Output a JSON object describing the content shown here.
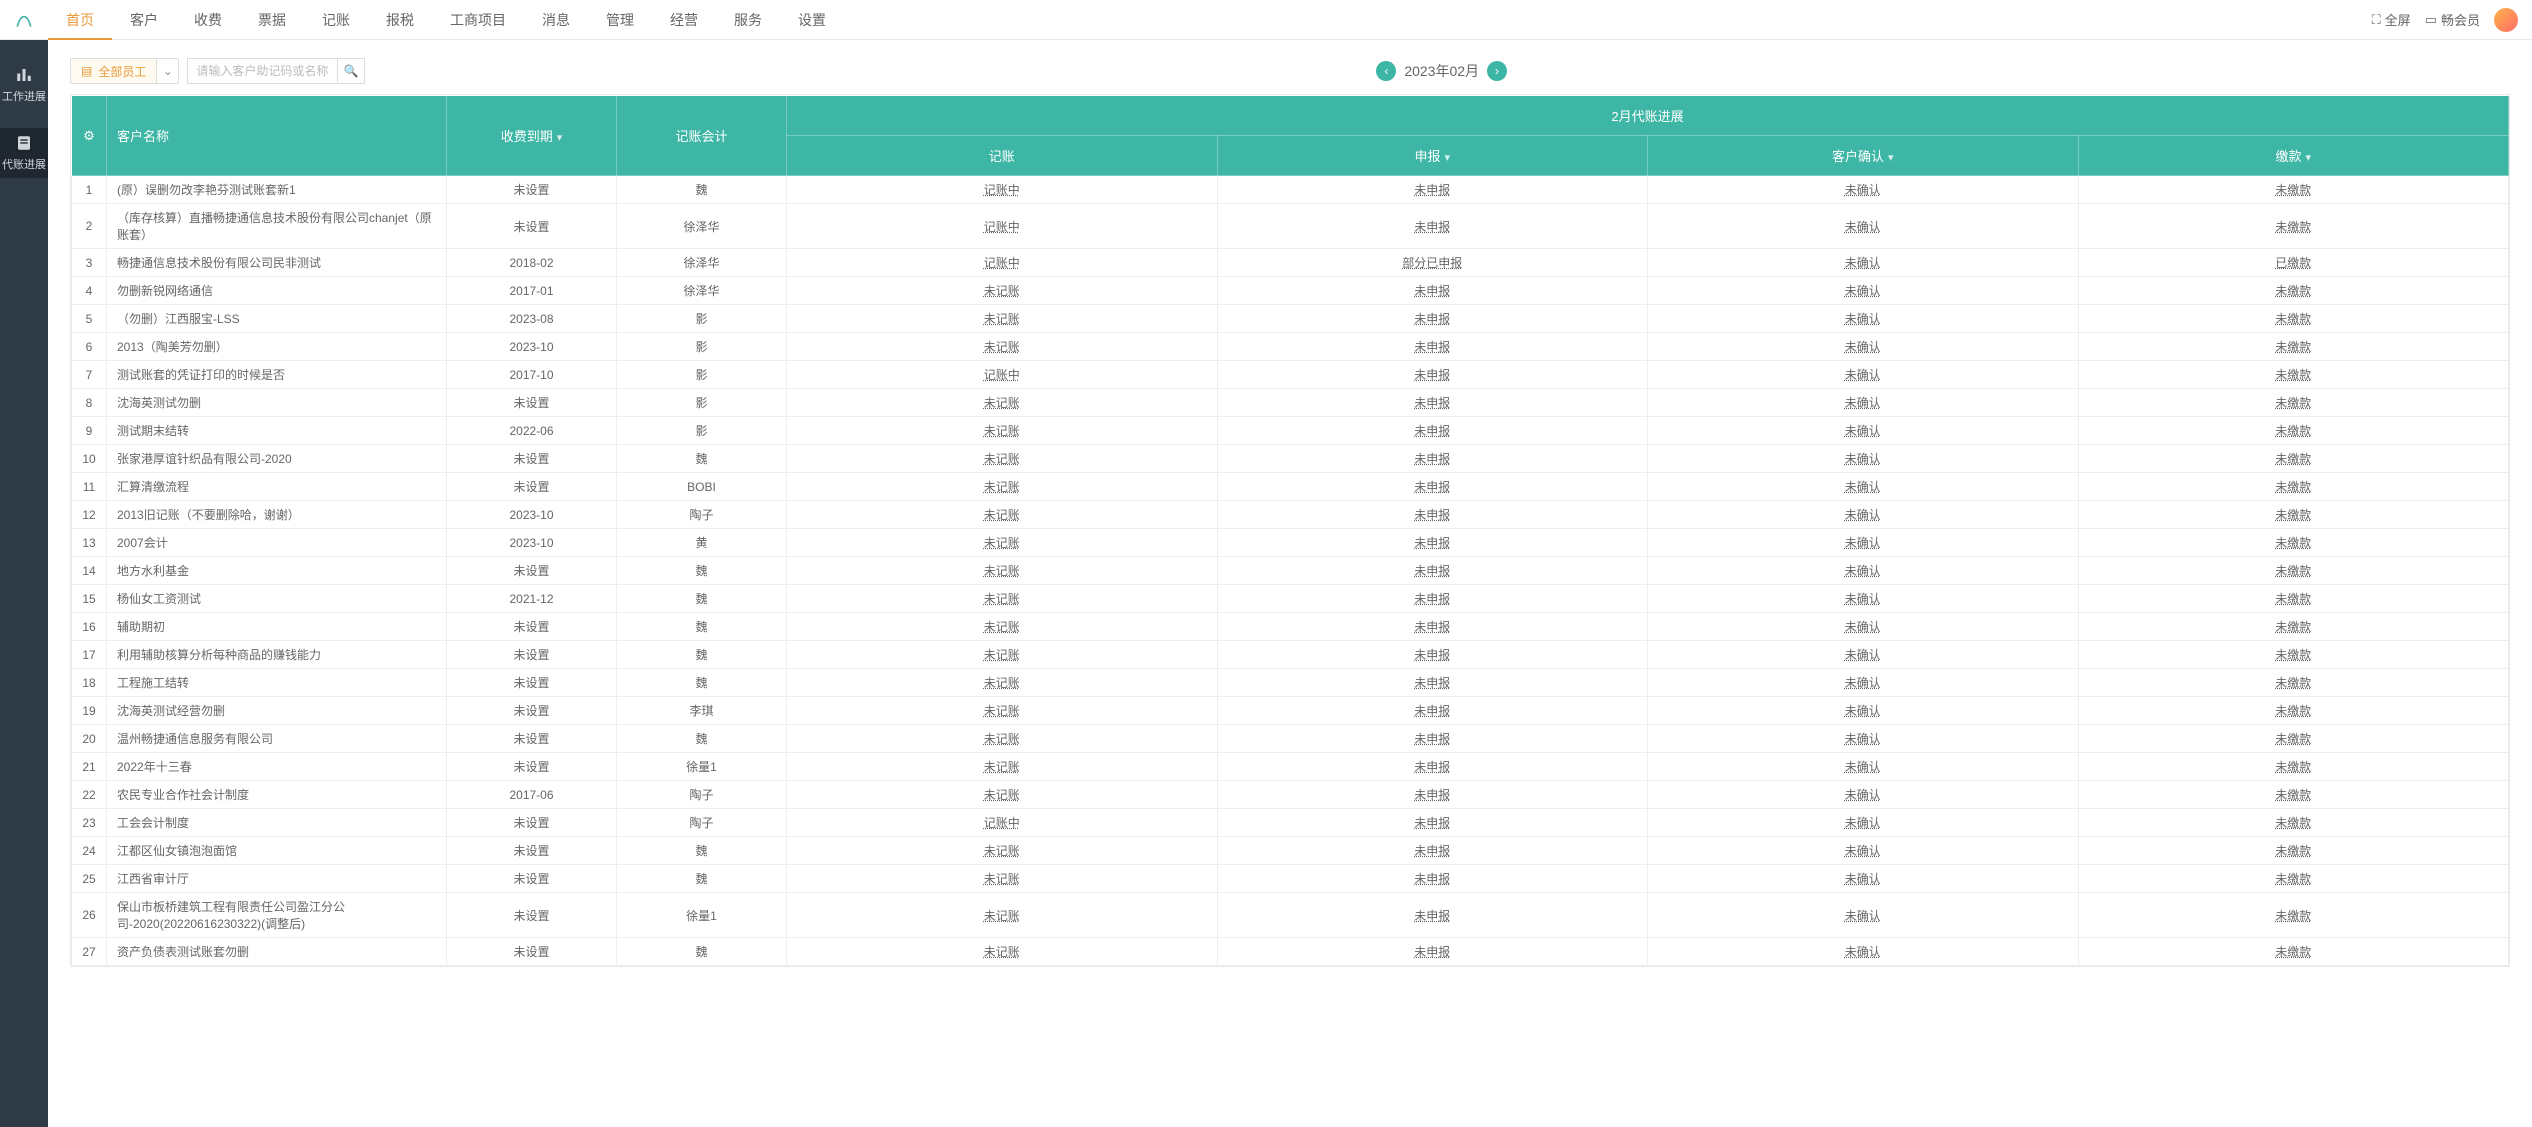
{
  "topnav": [
    "首页",
    "客户",
    "收费",
    "票据",
    "记账",
    "报税",
    "工商项目",
    "消息",
    "管理",
    "经营",
    "服务",
    "设置"
  ],
  "topnav_active_index": 0,
  "topright": {
    "fullscreen": "全屏",
    "member": "畅会员"
  },
  "sidebar": [
    {
      "label": "工作进展",
      "icon": "bar"
    },
    {
      "label": "代账进展",
      "icon": "doc"
    }
  ],
  "sidebar_active_index": 1,
  "filters": {
    "staff_label": "全部员工",
    "search_placeholder": "请输入客户助记码或名称",
    "month_label": "2023年02月"
  },
  "columns": {
    "gear": "⚙",
    "name": "客户名称",
    "due": "收费到期",
    "accountant": "记账会计",
    "progress_header": "2月代账进展",
    "progress_cols": [
      "记账",
      "申报",
      "客户确认",
      "缴款"
    ]
  },
  "rows": [
    {
      "idx": 1,
      "name": "(原）误删勿改李艳芬测试账套新1",
      "due": "未设置",
      "acct": "魏",
      "c1": "记账中",
      "c2": "未申报",
      "c3": "未确认",
      "c4": "未缴款"
    },
    {
      "idx": 2,
      "name": "（库存核算）直播畅捷通信息技术股份有限公司chanjet（原账套）",
      "due": "未设置",
      "acct": "徐泽华",
      "c1": "记账中",
      "c2": "未申报",
      "c3": "未确认",
      "c4": "未缴款"
    },
    {
      "idx": 3,
      "name": "畅捷通信息技术股份有限公司民非测试",
      "due": "2018-02",
      "acct": "徐泽华",
      "c1": "记账中",
      "c2": "部分已申报",
      "c3": "未确认",
      "c4": "已缴款"
    },
    {
      "idx": 4,
      "name": "勿删新锐网络通信",
      "due": "2017-01",
      "acct": "徐泽华",
      "c1": "未记账",
      "c2": "未申报",
      "c3": "未确认",
      "c4": "未缴款"
    },
    {
      "idx": 5,
      "name": "（勿删）江西服宝-LSS",
      "due": "2023-08",
      "acct": "影",
      "c1": "未记账",
      "c2": "未申报",
      "c3": "未确认",
      "c4": "未缴款"
    },
    {
      "idx": 6,
      "name": "2013（陶美芳勿删）",
      "due": "2023-10",
      "acct": "影",
      "c1": "未记账",
      "c2": "未申报",
      "c3": "未确认",
      "c4": "未缴款"
    },
    {
      "idx": 7,
      "name": "测试账套的凭证打印的时候是否",
      "due": "2017-10",
      "acct": "影",
      "c1": "记账中",
      "c2": "未申报",
      "c3": "未确认",
      "c4": "未缴款"
    },
    {
      "idx": 8,
      "name": "沈海英测试勿删",
      "due": "未设置",
      "acct": "影",
      "c1": "未记账",
      "c2": "未申报",
      "c3": "未确认",
      "c4": "未缴款"
    },
    {
      "idx": 9,
      "name": "测试期末结转",
      "due": "2022-06",
      "acct": "影",
      "c1": "未记账",
      "c2": "未申报",
      "c3": "未确认",
      "c4": "未缴款"
    },
    {
      "idx": 10,
      "name": "张家港厚谊针织品有限公司-2020",
      "due": "未设置",
      "acct": "魏",
      "c1": "未记账",
      "c2": "未申报",
      "c3": "未确认",
      "c4": "未缴款"
    },
    {
      "idx": 11,
      "name": "汇算清缴流程",
      "due": "未设置",
      "acct": "BOBI",
      "c1": "未记账",
      "c2": "未申报",
      "c3": "未确认",
      "c4": "未缴款"
    },
    {
      "idx": 12,
      "name": "2013旧记账（不要删除哈，谢谢）",
      "due": "2023-10",
      "acct": "陶子",
      "c1": "未记账",
      "c2": "未申报",
      "c3": "未确认",
      "c4": "未缴款"
    },
    {
      "idx": 13,
      "name": "2007会计",
      "due": "2023-10",
      "acct": "黄",
      "c1": "未记账",
      "c2": "未申报",
      "c3": "未确认",
      "c4": "未缴款"
    },
    {
      "idx": 14,
      "name": "地方水利基金",
      "due": "未设置",
      "acct": "魏",
      "c1": "未记账",
      "c2": "未申报",
      "c3": "未确认",
      "c4": "未缴款"
    },
    {
      "idx": 15,
      "name": "杨仙女工资测试",
      "due": "2021-12",
      "acct": "魏",
      "c1": "未记账",
      "c2": "未申报",
      "c3": "未确认",
      "c4": "未缴款"
    },
    {
      "idx": 16,
      "name": "辅助期初",
      "due": "未设置",
      "acct": "魏",
      "c1": "未记账",
      "c2": "未申报",
      "c3": "未确认",
      "c4": "未缴款"
    },
    {
      "idx": 17,
      "name": "利用辅助核算分析每种商品的赚钱能力",
      "due": "未设置",
      "acct": "魏",
      "c1": "未记账",
      "c2": "未申报",
      "c3": "未确认",
      "c4": "未缴款"
    },
    {
      "idx": 18,
      "name": "工程施工结转",
      "due": "未设置",
      "acct": "魏",
      "c1": "未记账",
      "c2": "未申报",
      "c3": "未确认",
      "c4": "未缴款"
    },
    {
      "idx": 19,
      "name": "沈海英测试经营勿删",
      "due": "未设置",
      "acct": "李琪",
      "c1": "未记账",
      "c2": "未申报",
      "c3": "未确认",
      "c4": "未缴款"
    },
    {
      "idx": 20,
      "name": "温州畅捷通信息服务有限公司",
      "due": "未设置",
      "acct": "魏",
      "c1": "未记账",
      "c2": "未申报",
      "c3": "未确认",
      "c4": "未缴款"
    },
    {
      "idx": 21,
      "name": "2022年十三春",
      "due": "未设置",
      "acct": "徐量1",
      "c1": "未记账",
      "c2": "未申报",
      "c3": "未确认",
      "c4": "未缴款"
    },
    {
      "idx": 22,
      "name": "农民专业合作社会计制度",
      "due": "2017-06",
      "acct": "陶子",
      "c1": "未记账",
      "c2": "未申报",
      "c3": "未确认",
      "c4": "未缴款"
    },
    {
      "idx": 23,
      "name": "工会会计制度",
      "due": "未设置",
      "acct": "陶子",
      "c1": "记账中",
      "c2": "未申报",
      "c3": "未确认",
      "c4": "未缴款"
    },
    {
      "idx": 24,
      "name": "江都区仙女镇泡泡面馆",
      "due": "未设置",
      "acct": "魏",
      "c1": "未记账",
      "c2": "未申报",
      "c3": "未确认",
      "c4": "未缴款"
    },
    {
      "idx": 25,
      "name": "江西省审计厅",
      "due": "未设置",
      "acct": "魏",
      "c1": "未记账",
      "c2": "未申报",
      "c3": "未确认",
      "c4": "未缴款"
    },
    {
      "idx": 26,
      "name": "保山市板桥建筑工程有限责任公司盈江分公司-2020(20220616230322)(调整后)",
      "due": "未设置",
      "acct": "徐量1",
      "c1": "未记账",
      "c2": "未申报",
      "c3": "未确认",
      "c4": "未缴款"
    },
    {
      "idx": 27,
      "name": "资产负债表测试账套勿删",
      "due": "未设置",
      "acct": "魏",
      "c1": "未记账",
      "c2": "未申报",
      "c3": "未确认",
      "c4": "未缴款"
    }
  ]
}
